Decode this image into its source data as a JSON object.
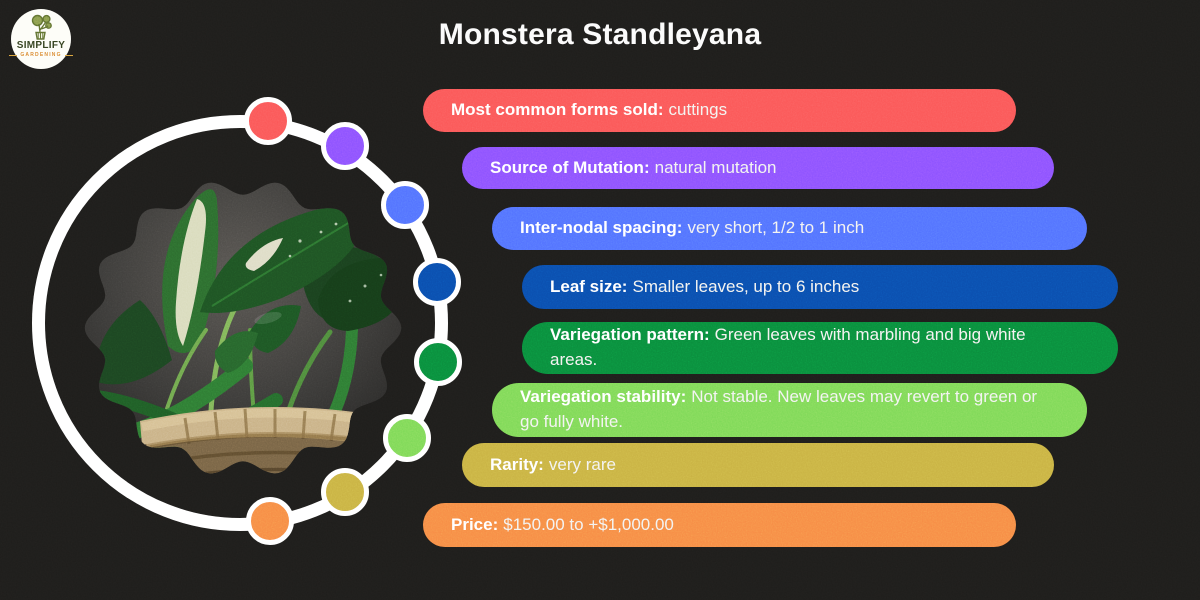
{
  "logo": {
    "brand": "SIMPLIFY",
    "tagline": "GARDENING",
    "icon": "potted-plant-icon"
  },
  "header": {
    "title": "Monstera Standleyana"
  },
  "facts": [
    {
      "label": "Most common forms sold:",
      "value": "cuttings",
      "color": "#fb5757"
    },
    {
      "label": "Source of Mutation:",
      "value": "natural mutation",
      "color": "#8c52ff"
    },
    {
      "label": "Inter-nodal spacing:",
      "value": "very short, 1/2 to 1 inch",
      "color": "#5271ff"
    },
    {
      "label": "Leaf size:",
      "value": "Smaller leaves, up to 6 inches",
      "color": "#0b4dad"
    },
    {
      "label": "Variegation pattern:",
      "value": "Green leaves with marbling and big white areas.",
      "color": "#0a8c3c"
    },
    {
      "label": "Variegation stability:",
      "value": "Not stable. New leaves may revert to green or go fully white.",
      "color": "#7ed957"
    },
    {
      "label": "Rarity:",
      "value": "very rare",
      "color": "#c9b243"
    },
    {
      "label": "Price:",
      "value": "$150.00 to +$1,000.00",
      "color": "#f78b45"
    }
  ],
  "ring": {
    "dot_colors": [
      "#fb5757",
      "#8c52ff",
      "#5271ff",
      "#0b4dad",
      "#0a8c3c",
      "#7ed957",
      "#c9b243",
      "#f78b45"
    ]
  }
}
